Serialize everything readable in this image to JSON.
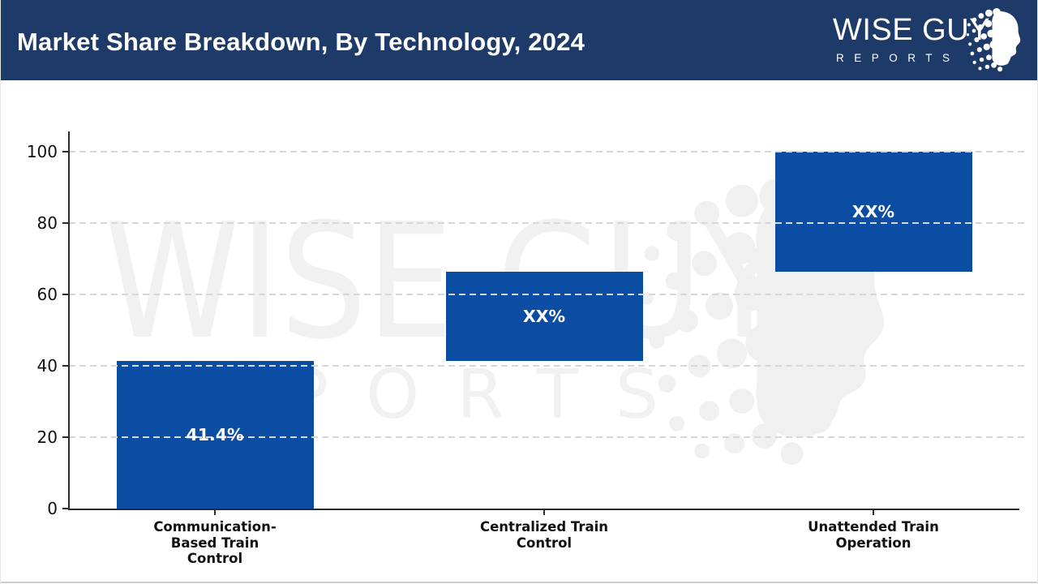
{
  "header": {
    "title": "Market Share Breakdown, By Technology, 2024",
    "bg_color": "#1e3a68",
    "title_color": "#ffffff"
  },
  "logo": {
    "wordmark": "WISE GUY",
    "subtext": "REPORTS",
    "icon": "dotted-head-profile"
  },
  "watermark": {
    "wordmark": "WISE GUY",
    "subtext": "REPORTS",
    "icon": "dotted-head-profile",
    "color": "#f1f1f1"
  },
  "chart_data": {
    "type": "bar",
    "variant": "waterfall-stacked-percentage",
    "title": "Market Share Breakdown, By Technology, 2024",
    "categories": [
      "Communication-Based Train Control",
      "Centralized Train Control",
      "Unattended Train Operation"
    ],
    "categories_lines": [
      [
        "Communication-",
        "Based Train",
        "Control"
      ],
      [
        "Centralized Train",
        "Control"
      ],
      [
        "Unattended Train",
        "Operation"
      ]
    ],
    "segments": [
      {
        "start": 0,
        "end": 41.4,
        "value": 41.4,
        "label": "41.4%"
      },
      {
        "start": 41.4,
        "end": 66.4,
        "value": 25.0,
        "label": "XX%"
      },
      {
        "start": 66.4,
        "end": 100,
        "value": 33.6,
        "label": "XX%"
      }
    ],
    "displayed_value_labels": [
      "41.4%",
      "XX%",
      "XX%"
    ],
    "xlabel": "",
    "ylabel": "",
    "yticks": [
      0,
      20,
      40,
      60,
      80,
      100
    ],
    "ylim": [
      0,
      105
    ],
    "grid": "dashed-horizontal-over-bars",
    "legend": "none",
    "bar_color": "#0b4da2",
    "value_label_color": "#ffffff",
    "axis_color": "#2b2b2b",
    "gridline_color": "#d7d7d7"
  }
}
